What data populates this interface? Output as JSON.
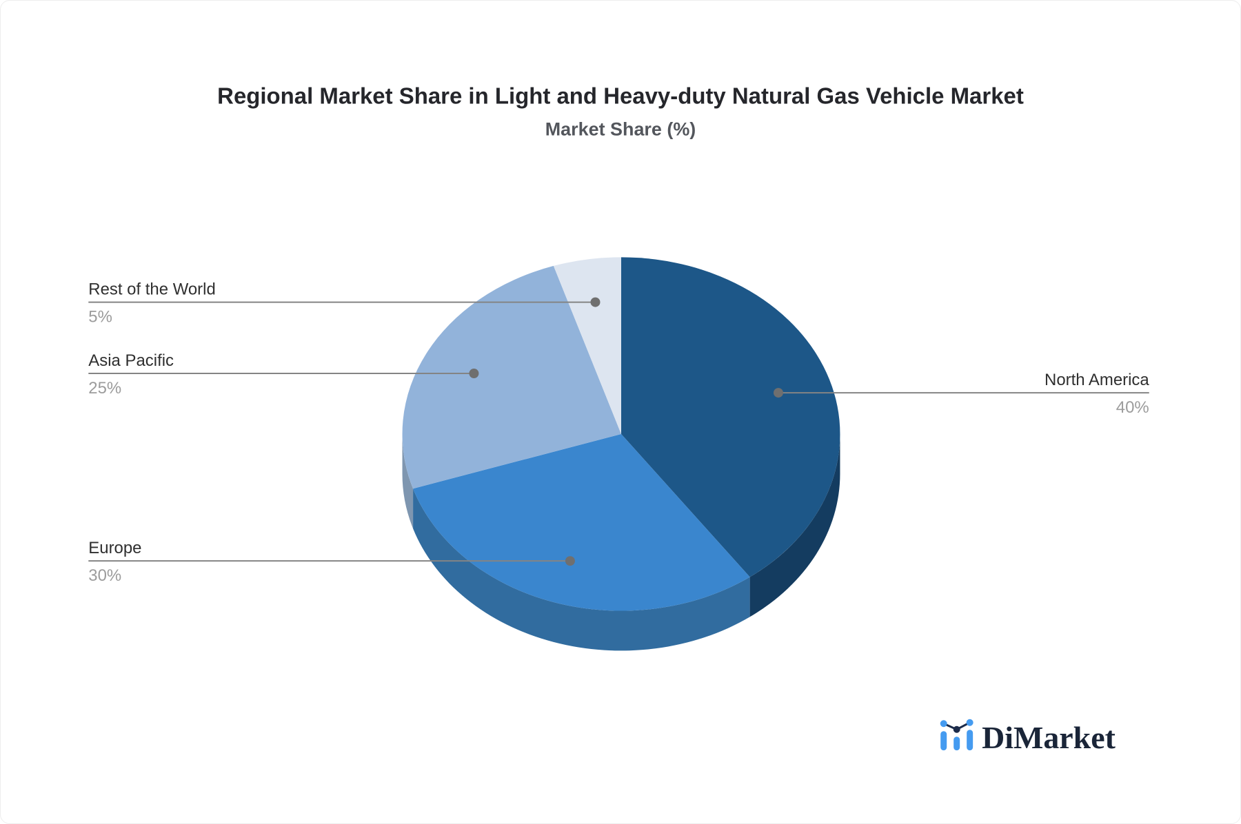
{
  "chart_data": {
    "type": "pie",
    "title": "Regional Market Share in Light and Heavy-duty Natural Gas Vehicle Market",
    "subtitle": "Market Share (%)",
    "unit": "%",
    "categories": [
      "North America",
      "Europe",
      "Asia Pacific",
      "Rest of the World"
    ],
    "values": [
      40,
      30,
      25,
      5
    ],
    "slices": [
      {
        "label": "North America",
        "value": 40,
        "display": "40%",
        "color": "#1D5788",
        "side_color": "#143C60"
      },
      {
        "label": "Europe",
        "value": 30,
        "display": "30%",
        "color": "#3A86CE",
        "side_color": "#316C9F"
      },
      {
        "label": "Asia Pacific",
        "value": 25,
        "display": "25%",
        "color": "#92B3DA",
        "side_color": "#7E96B0"
      },
      {
        "label": "Rest of the World",
        "value": 5,
        "display": "5%",
        "color": "#DDE5F0",
        "side_color": "#C6D2E2"
      }
    ],
    "style": {
      "effect": "3d",
      "start_angle_deg": 0,
      "direction": "clockwise",
      "legend": "none",
      "leader_color": "#848484",
      "dot_color": "#6F6F6F",
      "label_color": "#2F2F2F",
      "value_color": "#9C9C9C",
      "title_color": "#25262B",
      "subtitle_color": "#53565C"
    }
  },
  "brand": {
    "name": "DiMarket",
    "icon": "bar-line-chart-logo-icon",
    "text_color": "#1A2538",
    "bar_color": "#459BF0",
    "navy_color": "#1C2B4A"
  }
}
